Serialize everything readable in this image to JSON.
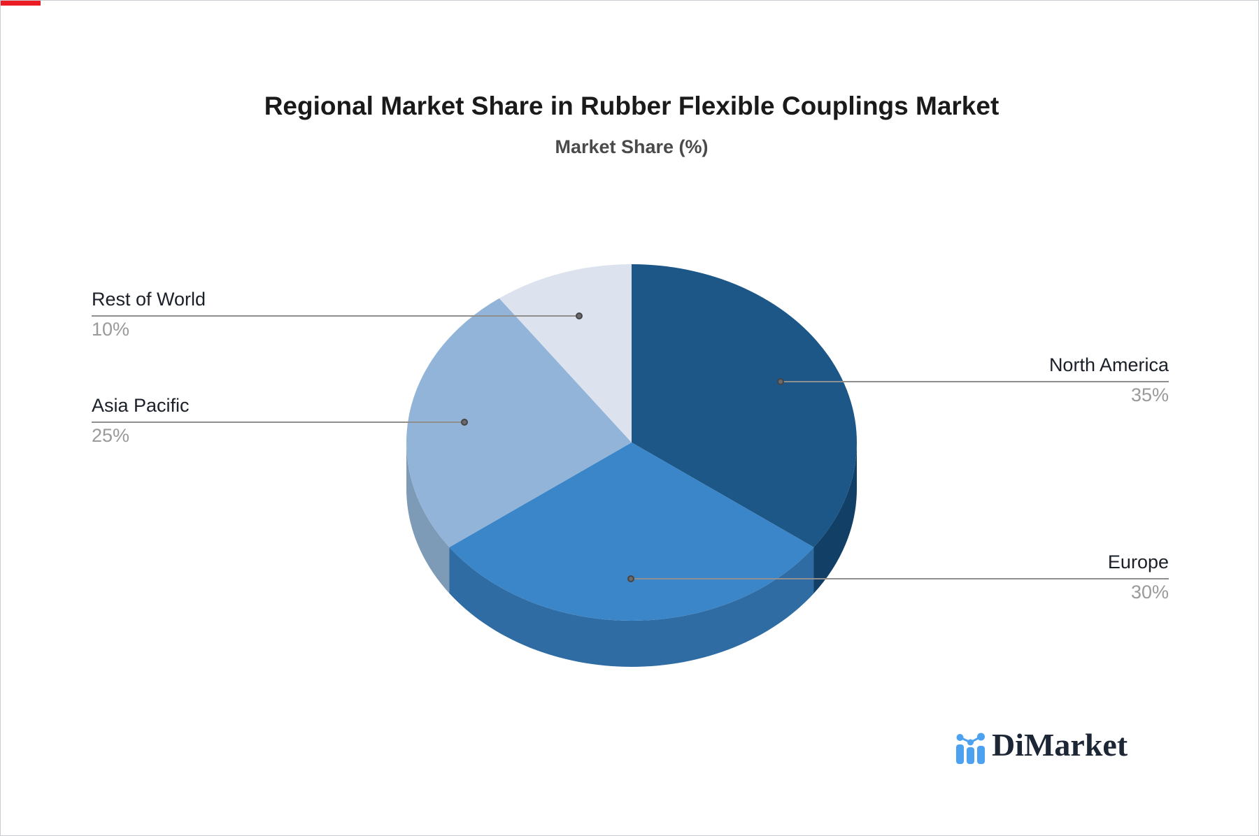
{
  "title": "Regional Market Share in Rubber Flexible Couplings Market",
  "subtitle": "Market Share (%)",
  "chart_data": {
    "type": "pie",
    "three_d": true,
    "title": "Regional Market Share in Rubber Flexible Couplings Market",
    "subtitle": "Market Share (%)",
    "unit": "%",
    "start_angle_deg": 0,
    "direction": "clockwise",
    "legend": "none",
    "slices": [
      {
        "name": "North America",
        "value": 35,
        "pct_label": "35%",
        "color": "#1c5787",
        "side_color": "#123f66",
        "label_side": "right"
      },
      {
        "name": "Europe",
        "value": 30,
        "pct_label": "30%",
        "color": "#3a86c8",
        "side_color": "#2e6ca3",
        "label_side": "right"
      },
      {
        "name": "Asia Pacific",
        "value": 25,
        "pct_label": "25%",
        "color": "#92b4d8",
        "side_color": "#7d9ab6",
        "label_side": "left"
      },
      {
        "name": "Rest of World",
        "value": 10,
        "pct_label": "10%",
        "color": "#dce3ee",
        "side_color": "#c9d2e0",
        "label_side": "left"
      }
    ],
    "label_text_color": "#1a1f28",
    "pct_text_color": "#9a9a9a",
    "connector_color": "#8f8f8f"
  },
  "logo": {
    "text": "DiMarket",
    "icon": "bar-line-chart-icon",
    "icon_color": "#4da1f1",
    "text_color": "#1c2634"
  },
  "artifact": {
    "color": "#ec1c24"
  }
}
